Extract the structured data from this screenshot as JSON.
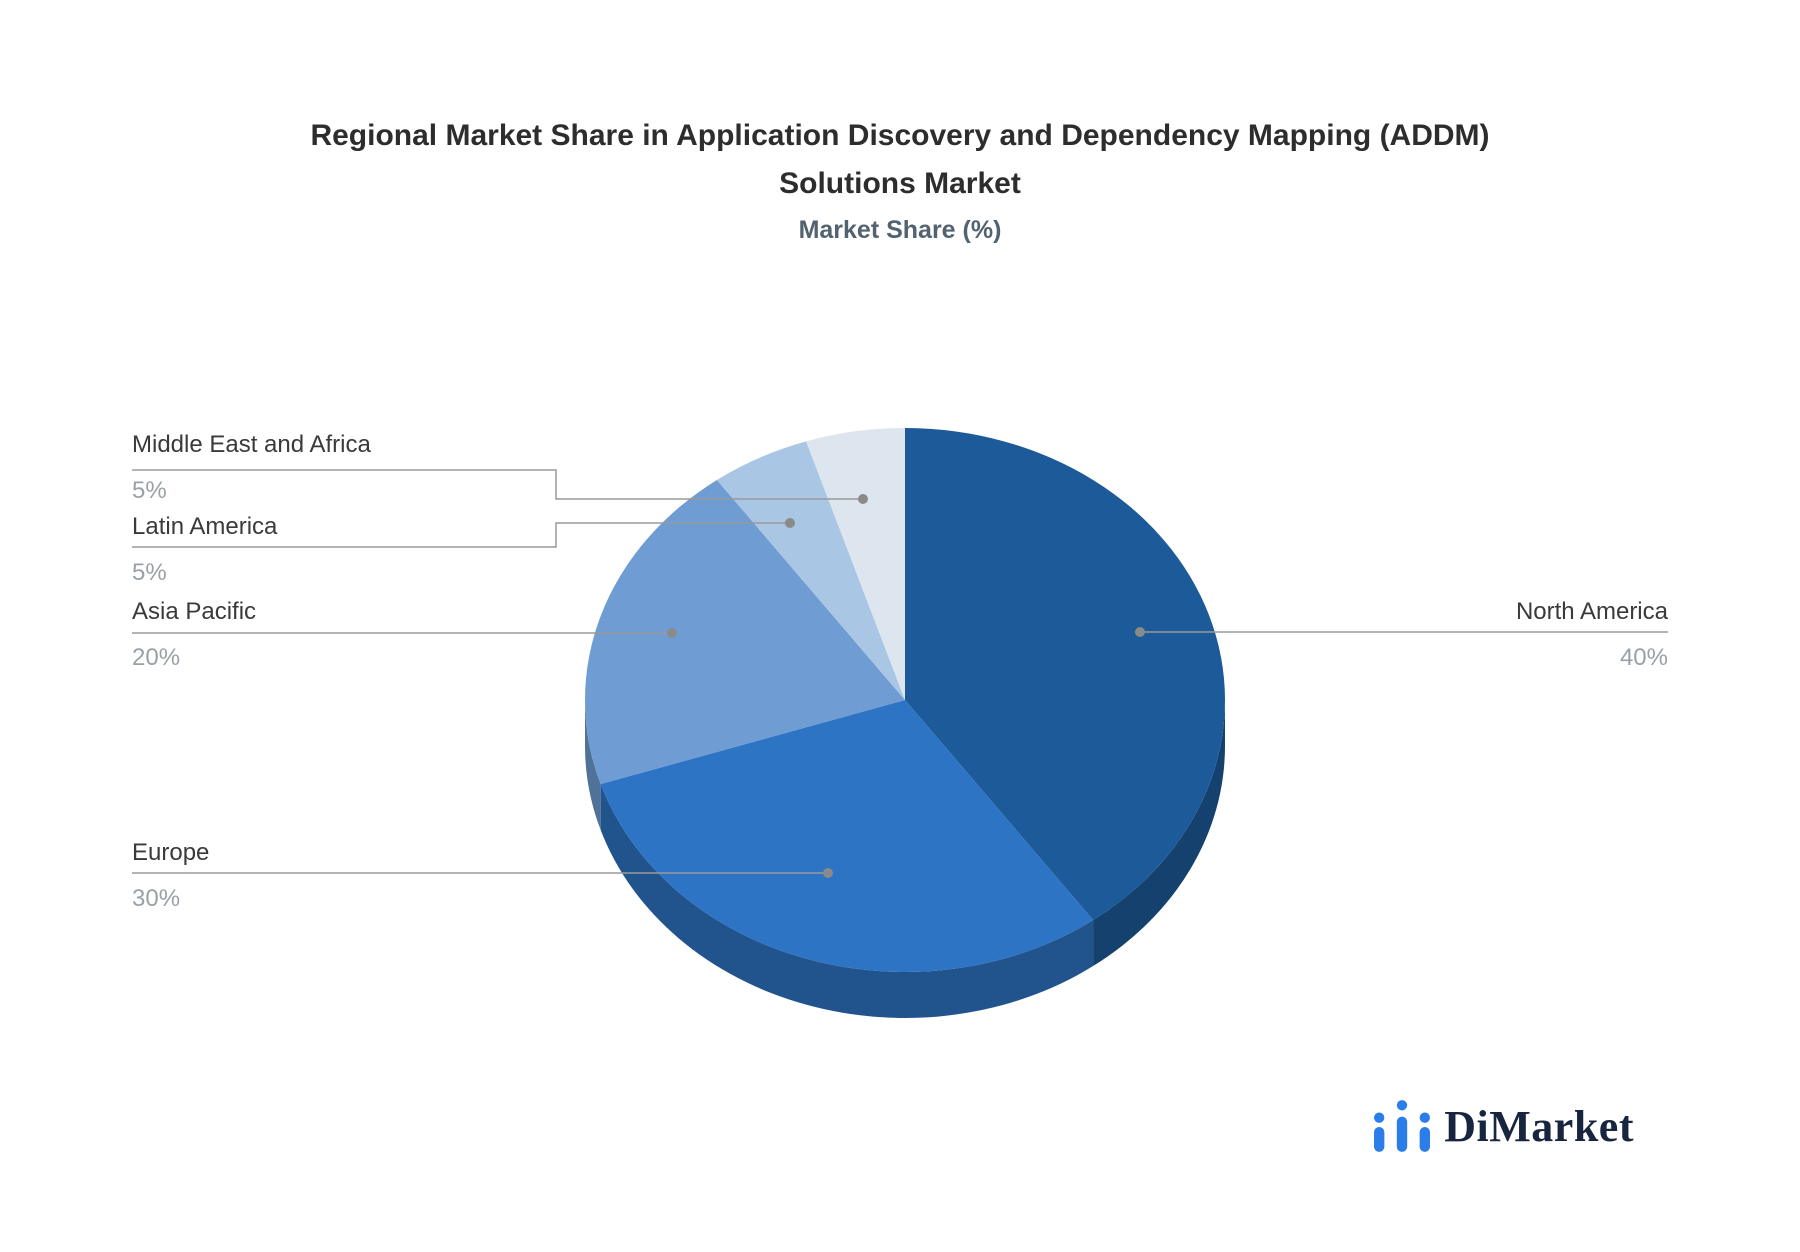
{
  "chart_data": {
    "type": "pie",
    "title": "Regional Market Share in Application Discovery and Dependency Mapping (ADDM) Solutions Market",
    "subtitle": "Market Share (%)",
    "unit": "%",
    "effect": "3d",
    "start_angle_deg": 0,
    "direction": "clockwise",
    "labels": [
      "North America",
      "Europe",
      "Asia Pacific",
      "Latin America",
      "Middle East and Africa"
    ],
    "values": [
      40,
      30,
      20,
      5,
      5
    ],
    "display_values": [
      "40%",
      "30%",
      "20%",
      "5%",
      "5%"
    ],
    "colors": [
      "#1c5a99",
      "#2e74c4",
      "#6f9dd3",
      "#a9c6e4",
      "#dde5ee"
    ],
    "leader_line_color": "#9a9a9a",
    "dot_color": "#8a8a8a",
    "label_color": "#3a3a3a",
    "value_color": "#9aa0a6",
    "legend_position": "callouts"
  },
  "branding": {
    "logo_text": "DiMarket",
    "logo_icon": "bar-chart-icon",
    "text_color": "#18253f",
    "icon_color": "#2b7de9"
  }
}
